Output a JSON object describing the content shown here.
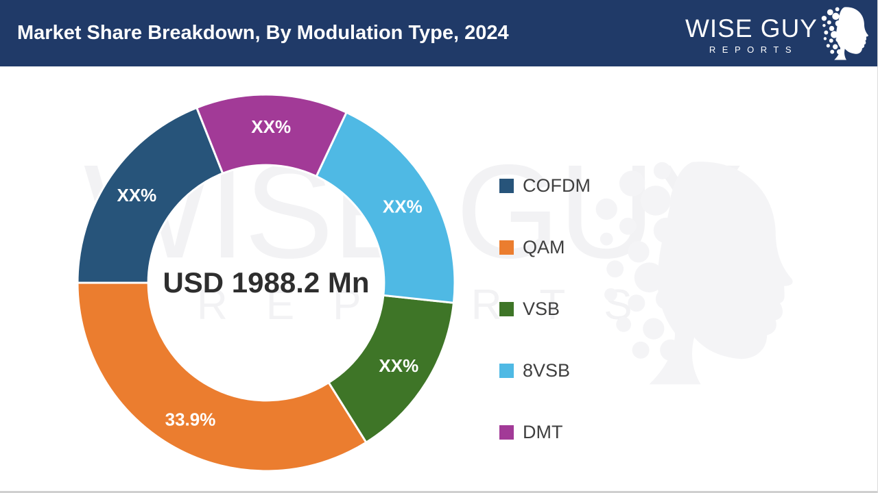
{
  "header": {
    "title": "Market Share Breakdown, By Modulation Type, 2024",
    "logo": {
      "name": "WISE GUY",
      "subname": "REPORTS"
    }
  },
  "watermark": {
    "line1": "WISE GUY",
    "line2": "REPORTS"
  },
  "chart_data": {
    "type": "pie",
    "subtype": "donut",
    "title": "Market Share Breakdown, By Modulation Type, 2024",
    "center_label": "USD 1988.2 Mn",
    "hole_ratio": 0.625,
    "start_angle_deg_clockwise_from_top": 338.4,
    "sweep_direction": "counterclockwise",
    "legend_position": "right",
    "segments": [
      {
        "name": "COFDM",
        "share_pct_est": 19.0,
        "displayed_label": "XX%",
        "color": "#27547a"
      },
      {
        "name": "QAM",
        "share_pct_est": 33.9,
        "displayed_label": "33.9%",
        "color": "#eb7d2f"
      },
      {
        "name": "VSB",
        "share_pct_est": 14.4,
        "displayed_label": "XX%",
        "color": "#3e7527"
      },
      {
        "name": "8VSB",
        "share_pct_est": 19.7,
        "displayed_label": "XX%",
        "color": "#4fb9e4"
      },
      {
        "name": "DMT",
        "share_pct_est": 13.0,
        "displayed_label": "XX%",
        "color": "#a23a97"
      }
    ]
  },
  "colors": {
    "header_bg": "#203a68",
    "title_text": "#ffffff",
    "center_text": "#2e2e2e",
    "legend_text": "#3f3f3f",
    "segment_label_text": "#ffffff",
    "watermark": "#f2f2f4",
    "bottom_line": "#cfcfcf",
    "background": "#ffffff"
  }
}
